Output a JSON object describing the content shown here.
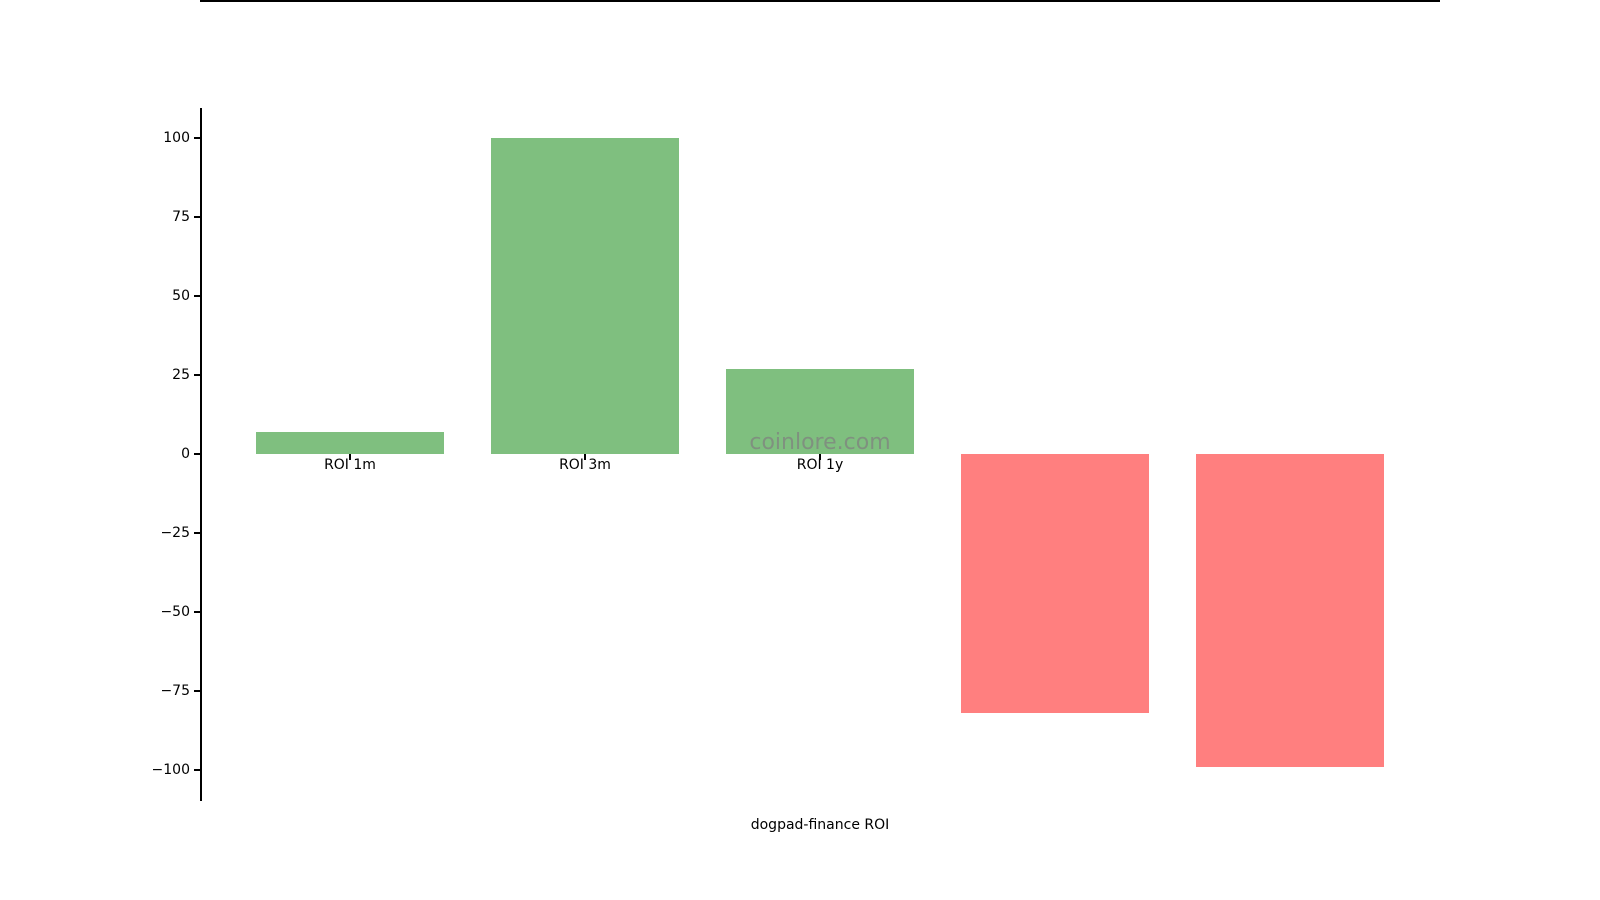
{
  "page": {
    "background_color": "#ffffff",
    "axis_color": "#000000",
    "tick_label_color": "#000000"
  },
  "chart_data": {
    "type": "bar",
    "title": "",
    "xlabel": "dogpad-finance ROI",
    "ylabel": "",
    "categories": [
      "ROI 1m",
      "ROI 3m",
      "ROI 1y",
      "",
      ""
    ],
    "values": [
      7,
      100,
      27,
      -82,
      -99
    ],
    "series": [
      {
        "name": "ROI",
        "values": [
          7,
          100,
          27,
          -82,
          -99
        ]
      }
    ],
    "bar_colors": [
      "#7fbf7f",
      "#7fbf7f",
      "#7fbf7f",
      "#ff7f7f",
      "#ff7f7f"
    ],
    "positive_color": "#7fbf7f",
    "negative_color": "#ff7f7f",
    "yticks": [
      {
        "value": 100,
        "label": "100"
      },
      {
        "value": 75,
        "label": "75"
      },
      {
        "value": 50,
        "label": "50"
      },
      {
        "value": 25,
        "label": "25"
      },
      {
        "value": 0,
        "label": "0"
      },
      {
        "value": -25,
        "label": "−25"
      },
      {
        "value": -50,
        "label": "−50"
      },
      {
        "value": -75,
        "label": "−75"
      },
      {
        "value": -100,
        "label": "−100"
      }
    ],
    "ylim": [
      -110,
      110
    ],
    "grid": false,
    "legend": null,
    "watermark": "coinlore.com",
    "watermark_color": "#808080"
  }
}
